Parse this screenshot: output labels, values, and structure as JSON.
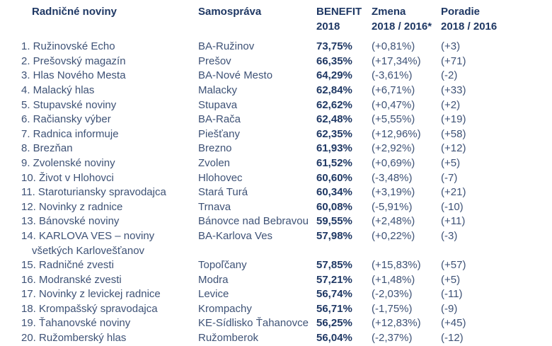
{
  "colors": {
    "header_text": "#1f3864",
    "body_text": "#3e5276",
    "benefit_value_text": "#1f3864",
    "background": "#ffffff"
  },
  "table": {
    "columns": [
      {
        "label": "Radničné noviny",
        "sublabel": ""
      },
      {
        "label": "Samospráva",
        "sublabel": ""
      },
      {
        "label": "BENEFIT",
        "sublabel": "2018"
      },
      {
        "label": "Zmena",
        "sublabel": "2018 / 2016*"
      },
      {
        "label": "Poradie",
        "sublabel": "2018 / 2016"
      }
    ],
    "rows": [
      {
        "rank": "1.",
        "newspaper": "Ružinovské Echo",
        "municipality": "BA-Ružinov",
        "benefit": "73,75%",
        "change": "(+0,81%)",
        "rank_change": "(+3)"
      },
      {
        "rank": "2.",
        "newspaper": "Prešovský magazín",
        "municipality": "Prešov",
        "benefit": "66,35%",
        "change": "(+17,34%)",
        "rank_change": "(+71)"
      },
      {
        "rank": "3.",
        "newspaper": "Hlas Nového Mesta",
        "municipality": "BA-Nové Mesto",
        "benefit": "64,29%",
        "change": "(-3,61%)",
        "rank_change": "(-2)"
      },
      {
        "rank": "4.",
        "newspaper": "Malacký hlas",
        "municipality": "Malacky",
        "benefit": "62,84%",
        "change": "(+6,71%)",
        "rank_change": "(+33)"
      },
      {
        "rank": "5.",
        "newspaper": "Stupavské noviny",
        "municipality": "Stupava",
        "benefit": "62,62%",
        "change": "(+0,47%)",
        "rank_change": "(+2)"
      },
      {
        "rank": "6.",
        "newspaper": "Račiansky výber",
        "municipality": "BA-Rača",
        "benefit": "62,48%",
        "change": "(+5,55%)",
        "rank_change": "(+19)"
      },
      {
        "rank": "7.",
        "newspaper": "Radnica informuje",
        "municipality": "Piešťany",
        "benefit": "62,35%",
        "change": "(+12,96%)",
        "rank_change": "(+58)"
      },
      {
        "rank": "8.",
        "newspaper": "Brezňan",
        "municipality": "Brezno",
        "benefit": "61,93%",
        "change": "(+2,92%)",
        "rank_change": "(+12)"
      },
      {
        "rank": "9.",
        "newspaper": "Zvolenské noviny",
        "municipality": "Zvolen",
        "benefit": "61,52%",
        "change": "(+0,69%)",
        "rank_change": "(+5)"
      },
      {
        "rank": "10.",
        "newspaper": "Život v Hlohovci",
        "municipality": "Hlohovec",
        "benefit": "60,60%",
        "change": "(-3,48%)",
        "rank_change": "(-7)"
      },
      {
        "rank": "11.",
        "newspaper": "Staroturiansky spravodajca",
        "municipality": "Stará Turá",
        "benefit": "60,34%",
        "change": "(+3,19%)",
        "rank_change": "(+21)"
      },
      {
        "rank": "12.",
        "newspaper": "Novinky z radnice",
        "municipality": "Trnava",
        "benefit": "60,08%",
        "change": "(-5,91%)",
        "rank_change": "(-10)"
      },
      {
        "rank": "13.",
        "newspaper": "Bánovské noviny",
        "municipality": "Bánovce nad Bebravou",
        "benefit": "59,55%",
        "change": "(+2,48%)",
        "rank_change": "(+11)"
      },
      {
        "rank": "14.",
        "newspaper": "KARLOVA VES – noviny",
        "newspaper2": "všetkých Karlovešťanov",
        "municipality": "BA-Karlova Ves",
        "benefit": "57,98%",
        "change": "(+0,22%)",
        "rank_change": "(-3)"
      },
      {
        "rank": "15.",
        "newspaper": "Radničné zvesti",
        "municipality": "Topoľčany",
        "benefit": "57,85%",
        "change": "(+15,83%)",
        "rank_change": "(+57)"
      },
      {
        "rank": "16.",
        "newspaper": "Modranské zvesti",
        "municipality": "Modra",
        "benefit": "57,21%",
        "change": "(+1,48%)",
        "rank_change": "(+5)"
      },
      {
        "rank": "17.",
        "newspaper": "Novinky z levickej radnice",
        "municipality": "Levice",
        "benefit": "56,74%",
        "change": "(-2,03%)",
        "rank_change": "(-11)"
      },
      {
        "rank": "18.",
        "newspaper": "Krompašský spravodajca",
        "municipality": "Krompachy",
        "benefit": "56,71%",
        "change": "(-1,75%)",
        "rank_change": "(-9)"
      },
      {
        "rank": "19.",
        "newspaper": "Ťahanovské noviny",
        "municipality": "KE-Sídlisko Ťahanovce",
        "benefit": "56,25%",
        "change": "(+12,83%)",
        "rank_change": "(+45)"
      },
      {
        "rank": "20.",
        "newspaper": "Ružomberský hlas",
        "municipality": "Ružomberok",
        "benefit": "56,04%",
        "change": "(-2,37%)",
        "rank_change": "(-12)"
      }
    ]
  }
}
